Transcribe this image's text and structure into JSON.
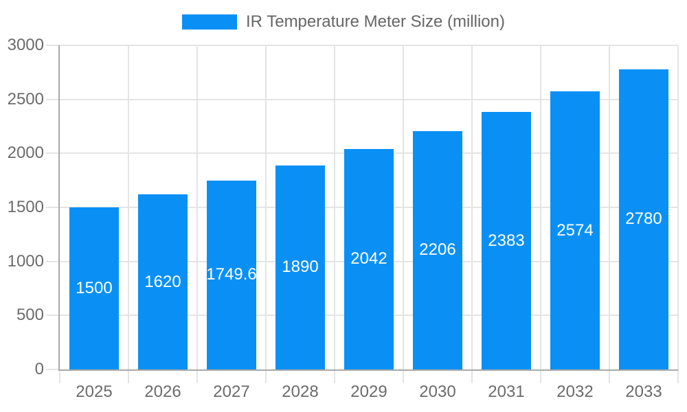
{
  "chart_data": {
    "type": "bar",
    "series_name": "IR Temperature Meter Size (million)",
    "categories": [
      "2025",
      "2026",
      "2027",
      "2028",
      "2029",
      "2030",
      "2031",
      "2032",
      "2033"
    ],
    "values": [
      1500,
      1620,
      1749.6,
      1890,
      2042,
      2206,
      2383,
      2574,
      2780
    ],
    "value_labels": [
      "1500",
      "1620",
      "1749.6",
      "1890",
      "2042",
      "2206",
      "2383",
      "2574",
      "2780"
    ],
    "yticks": [
      0,
      500,
      1000,
      1500,
      2000,
      2500,
      3000
    ],
    "ylim": [
      0,
      3000
    ],
    "xlabel": "",
    "ylabel": "",
    "grid": true,
    "legend_position": "top-center"
  },
  "colors": {
    "bar": "#0a90f5",
    "grid": "#e4e4e4",
    "axis": "#a8a8a8",
    "tick_text": "#6b6b6b",
    "legend_text": "#666666",
    "value_text": "#ffffff"
  }
}
